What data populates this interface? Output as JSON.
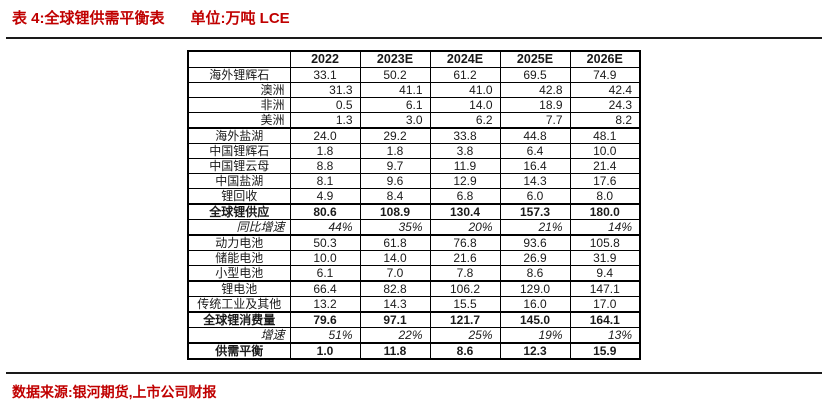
{
  "page": {
    "title": "表 4:全球锂供需平衡表",
    "unit": "单位:万吨 LCE",
    "source": "数据来源:银河期货,上市公司财报"
  },
  "colors": {
    "accent_red": "#c00000",
    "border_black": "#000000"
  },
  "table": {
    "columns": [
      "",
      "2022",
      "2023E",
      "2024E",
      "2025E",
      "2026E"
    ],
    "rows": [
      {
        "label": "海外锂辉石",
        "values": [
          "33.1",
          "50.2",
          "61.2",
          "69.5",
          "74.9"
        ],
        "style": "main",
        "thick_top": false
      },
      {
        "label": "澳洲",
        "values": [
          "31.3",
          "41.1",
          "41.0",
          "42.8",
          "42.4"
        ],
        "style": "sub",
        "thick_top": false
      },
      {
        "label": "非洲",
        "values": [
          "0.5",
          "6.1",
          "14.0",
          "18.9",
          "24.3"
        ],
        "style": "sub",
        "thick_top": false
      },
      {
        "label": "美洲",
        "values": [
          "1.3",
          "3.0",
          "6.2",
          "7.7",
          "8.2"
        ],
        "style": "sub",
        "thick_top": false
      },
      {
        "label": "海外盐湖",
        "values": [
          "24.0",
          "29.2",
          "33.8",
          "44.8",
          "48.1"
        ],
        "style": "main",
        "thick_top": true
      },
      {
        "label": "中国锂辉石",
        "values": [
          "1.8",
          "1.8",
          "3.8",
          "6.4",
          "10.0"
        ],
        "style": "main",
        "thick_top": false
      },
      {
        "label": "中国锂云母",
        "values": [
          "8.8",
          "9.7",
          "11.9",
          "16.4",
          "21.4"
        ],
        "style": "main",
        "thick_top": false
      },
      {
        "label": "中国盐湖",
        "values": [
          "8.1",
          "9.6",
          "12.9",
          "14.3",
          "17.6"
        ],
        "style": "main",
        "thick_top": false
      },
      {
        "label": "锂回收",
        "values": [
          "4.9",
          "8.4",
          "6.8",
          "6.0",
          "8.0"
        ],
        "style": "main",
        "thick_top": false
      },
      {
        "label": "全球锂供应",
        "values": [
          "80.6",
          "108.9",
          "130.4",
          "157.3",
          "180.0"
        ],
        "style": "total",
        "thick_top": true
      },
      {
        "label": "同比增速",
        "values": [
          "44%",
          "35%",
          "20%",
          "21%",
          "14%"
        ],
        "style": "pct",
        "thick_top": false
      },
      {
        "label": "动力电池",
        "values": [
          "50.3",
          "61.8",
          "76.8",
          "93.6",
          "105.8"
        ],
        "style": "main",
        "thick_top": true
      },
      {
        "label": "储能电池",
        "values": [
          "10.0",
          "14.0",
          "21.6",
          "26.9",
          "31.9"
        ],
        "style": "main",
        "thick_top": false
      },
      {
        "label": "小型电池",
        "values": [
          "6.1",
          "7.0",
          "7.8",
          "8.6",
          "9.4"
        ],
        "style": "main",
        "thick_top": false
      },
      {
        "label": "锂电池",
        "values": [
          "66.4",
          "82.8",
          "106.2",
          "129.0",
          "147.1"
        ],
        "style": "main",
        "thick_top": true
      },
      {
        "label": "传统工业及其他",
        "values": [
          "13.2",
          "14.3",
          "15.5",
          "16.0",
          "17.0"
        ],
        "style": "main",
        "thick_top": false
      },
      {
        "label": "全球锂消费量",
        "values": [
          "79.6",
          "97.1",
          "121.7",
          "145.0",
          "164.1"
        ],
        "style": "total",
        "thick_top": true
      },
      {
        "label": "增速",
        "values": [
          "51%",
          "22%",
          "25%",
          "19%",
          "13%"
        ],
        "style": "pct",
        "thick_top": false
      },
      {
        "label": "供需平衡",
        "values": [
          "1.0",
          "11.8",
          "8.6",
          "12.3",
          "15.9"
        ],
        "style": "total",
        "thick_top": true
      }
    ]
  }
}
